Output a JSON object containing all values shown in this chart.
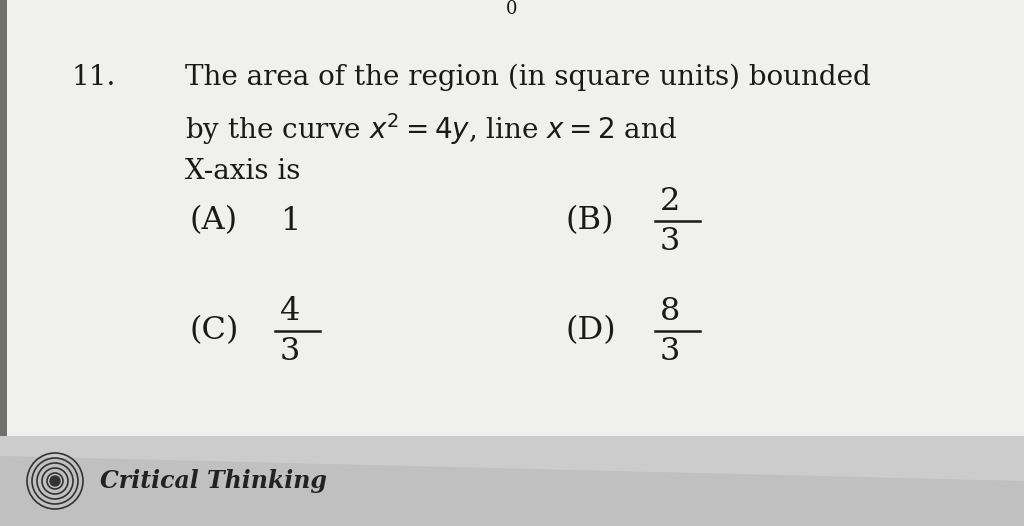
{
  "bg_color": "#d4d4d4",
  "content_color": "#f0f0ee",
  "footer_color": "#b8b8b8",
  "left_bar_color": "#888888",
  "text_color": "#1a1a1a",
  "footer_text_color": "#222222",
  "question_number": "11.",
  "line1": "The area of the region (in square units) bounded",
  "line2": "by the curve $x^2 = 4y$, line $x = 2$ and",
  "line3": "X-axis is",
  "opt_A_label": "(A)",
  "opt_A_val": "1",
  "opt_B_label": "(B)",
  "opt_B_num": "2",
  "opt_B_den": "3",
  "opt_C_label": "(C)",
  "opt_C_num": "4",
  "opt_C_den": "3",
  "opt_D_label": "(D)",
  "opt_D_num": "8",
  "opt_D_den": "3",
  "footer_text": "Critical Thinking",
  "top_char": "0",
  "fs_q": 20,
  "fs_opt": 23,
  "fs_footer": 17
}
